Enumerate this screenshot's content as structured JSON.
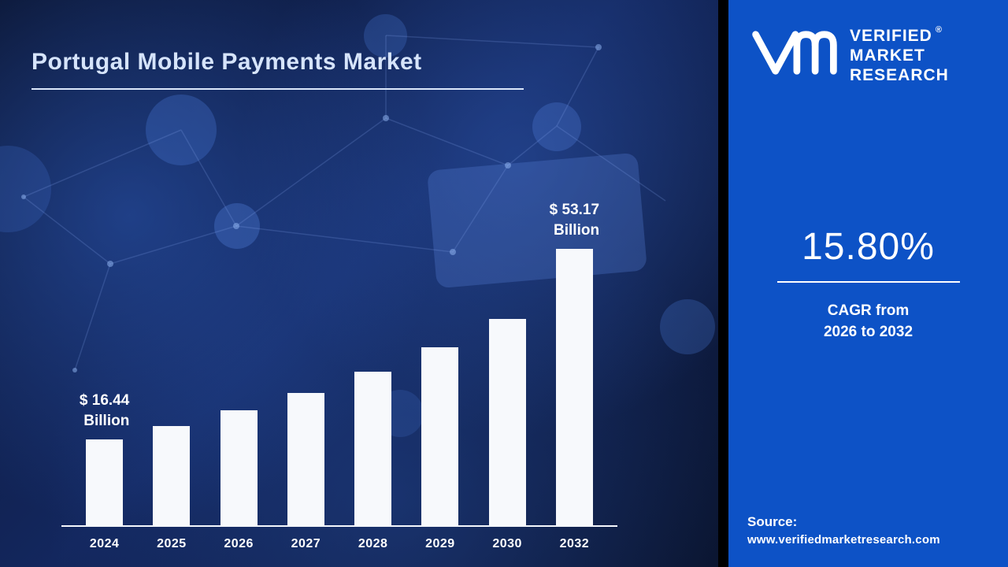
{
  "title": "Portugal Mobile Payments Market",
  "chart_data": {
    "type": "bar",
    "title": "Portugal Mobile Payments Market",
    "units": "USD Billion",
    "categories": [
      "2024",
      "2025",
      "2026",
      "2027",
      "2028",
      "2029",
      "2030",
      "2032"
    ],
    "values": [
      16.44,
      19.04,
      22.05,
      25.53,
      29.57,
      34.24,
      39.65,
      53.17
    ],
    "ylim": [
      0,
      60
    ],
    "grid": false,
    "bar_color": "#f7f9fc",
    "annotations": [
      {
        "index": 0,
        "lines": "$ 16.44\nBillion"
      },
      {
        "index": 7,
        "lines": "$ 53.17\nBillion"
      }
    ]
  },
  "side_panel": {
    "brand": {
      "line1": "VERIFIED",
      "line2": "MARKET",
      "line3": "RESEARCH",
      "registered": "®"
    },
    "cagr_value": "15.80%",
    "cagr_caption_line1": "CAGR from",
    "cagr_caption_line2": "2026 to 2032",
    "source_label": "Source:",
    "source_url": "www.verifiedmarketresearch.com"
  },
  "colors": {
    "panel_blue": "#0d52c6",
    "background_navy": "#0f1d45",
    "bar_white": "#f7f9fc",
    "title_text": "#d6e4fb"
  }
}
